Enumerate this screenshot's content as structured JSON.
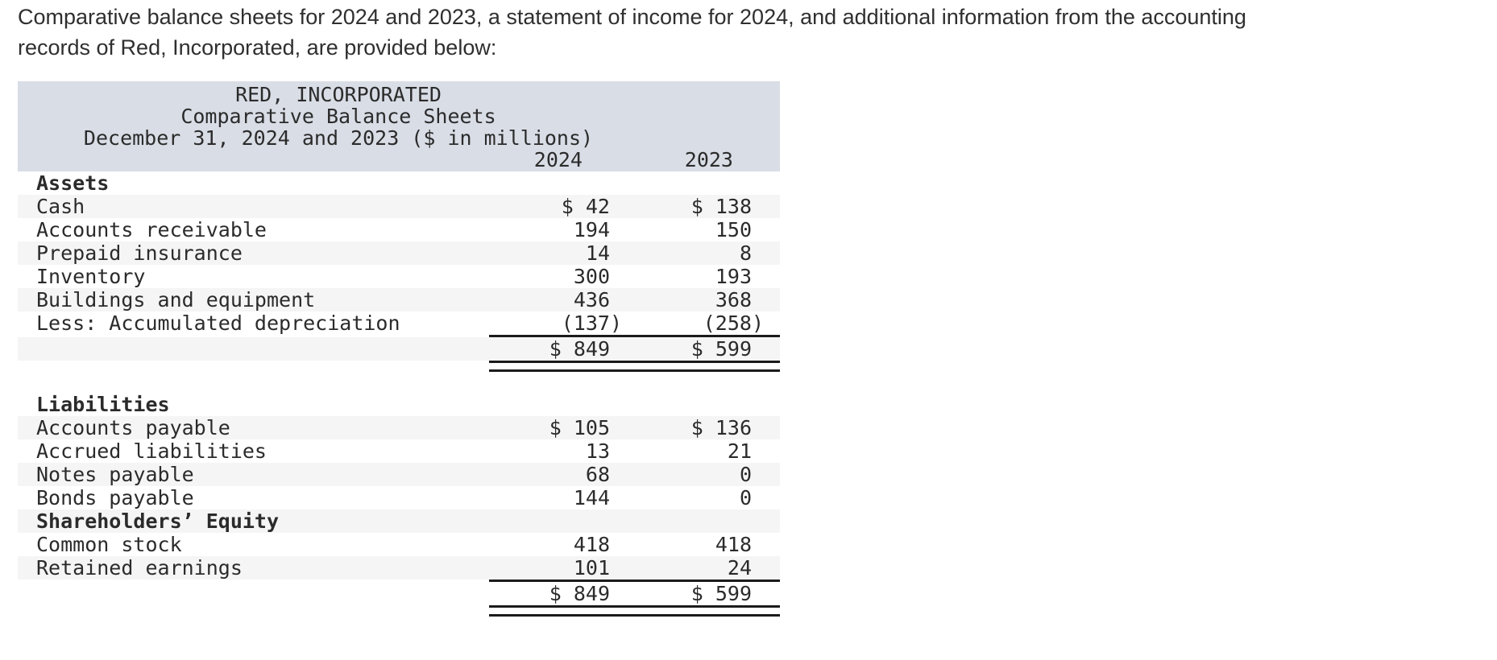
{
  "intro": "Comparative balance sheets for 2024 and 2023, a statement of income for 2024, and additional information from the accounting records of Red, Incorporated, are provided below:",
  "table": {
    "title": "RED, INCORPORATED",
    "subtitle": "Comparative Balance Sheets",
    "period": "December 31, 2024 and 2023 ($ in millions)",
    "columns": [
      "2024",
      "2023"
    ],
    "rows": [
      {
        "type": "section",
        "label": "Assets",
        "shade": false
      },
      {
        "type": "item",
        "label": "Cash",
        "y2024": "$ 42",
        "y2023": "$ 138",
        "shade": true
      },
      {
        "type": "item",
        "label": "Accounts receivable",
        "y2024": "194",
        "y2023": "150",
        "shade": false
      },
      {
        "type": "item",
        "label": "Prepaid insurance",
        "y2024": "14",
        "y2023": "8",
        "shade": true
      },
      {
        "type": "item",
        "label": "Inventory",
        "y2024": "300",
        "y2023": "193",
        "shade": false
      },
      {
        "type": "item",
        "label": "Buildings and equipment",
        "y2024": "436",
        "y2023": "368",
        "shade": true
      },
      {
        "type": "item",
        "label": "Less: Accumulated depreciation",
        "y2024": "(137)",
        "y2023": "(258)",
        "shade": false
      },
      {
        "type": "rule",
        "style": "single"
      },
      {
        "type": "total",
        "label": "",
        "y2024": "$ 849",
        "y2023": "$ 599",
        "shade": true
      },
      {
        "type": "rule",
        "style": "double"
      },
      {
        "type": "spacer"
      },
      {
        "type": "section",
        "label": "Liabilities",
        "shade": false
      },
      {
        "type": "item",
        "label": "Accounts payable",
        "y2024": "$ 105",
        "y2023": "$ 136",
        "shade": true
      },
      {
        "type": "item",
        "label": "Accrued liabilities",
        "y2024": "13",
        "y2023": "21",
        "shade": false
      },
      {
        "type": "item",
        "label": "Notes payable",
        "y2024": "68",
        "y2023": "0",
        "shade": true
      },
      {
        "type": "item",
        "label": "Bonds payable",
        "y2024": "144",
        "y2023": "0",
        "shade": false
      },
      {
        "type": "section",
        "label": "Shareholders’ Equity",
        "shade": true
      },
      {
        "type": "item",
        "label": "Common stock",
        "y2024": "418",
        "y2023": "418",
        "shade": false
      },
      {
        "type": "item",
        "label": "Retained earnings",
        "y2024": "101",
        "y2023": "24",
        "shade": true
      },
      {
        "type": "rule",
        "style": "single"
      },
      {
        "type": "total",
        "label": "",
        "y2024": "$ 849",
        "y2023": "$ 599",
        "shade": false
      },
      {
        "type": "rule",
        "style": "double"
      }
    ]
  }
}
